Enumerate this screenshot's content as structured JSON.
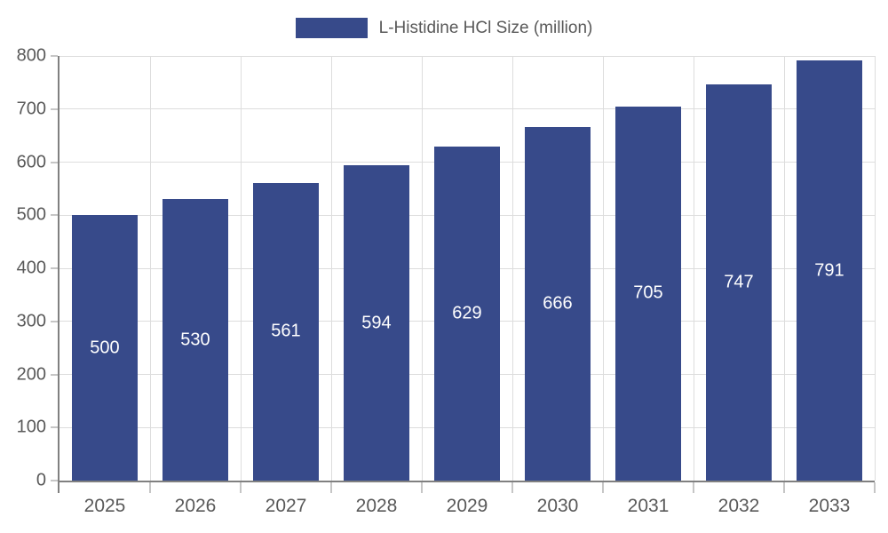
{
  "legend": {
    "label": "L-Histidine HCl Size (million)"
  },
  "chart_data": {
    "type": "bar",
    "title": "",
    "xlabel": "",
    "ylabel": "",
    "categories": [
      "2025",
      "2026",
      "2027",
      "2028",
      "2029",
      "2030",
      "2031",
      "2032",
      "2033"
    ],
    "values": [
      500,
      530,
      561,
      594,
      629,
      666,
      705,
      747,
      791
    ],
    "series": [
      {
        "name": "L-Histidine HCl Size (million)",
        "values": [
          500,
          530,
          561,
          594,
          629,
          666,
          705,
          747,
          791
        ]
      }
    ],
    "ylim": [
      0,
      800
    ],
    "ytick_step": 100,
    "ytick_labels": [
      "0",
      "100",
      "200",
      "300",
      "400",
      "500",
      "600",
      "700",
      "800"
    ],
    "grid": true,
    "legend_position": "top-center",
    "value_labels": "inside-center",
    "colors": {
      "bar": "#374a8a",
      "axis": "#808080",
      "gridline": "#dddddd",
      "tick": "#c6c6c6",
      "text": "#595959",
      "value_label": "#ffffff",
      "background": "#ffffff"
    }
  }
}
